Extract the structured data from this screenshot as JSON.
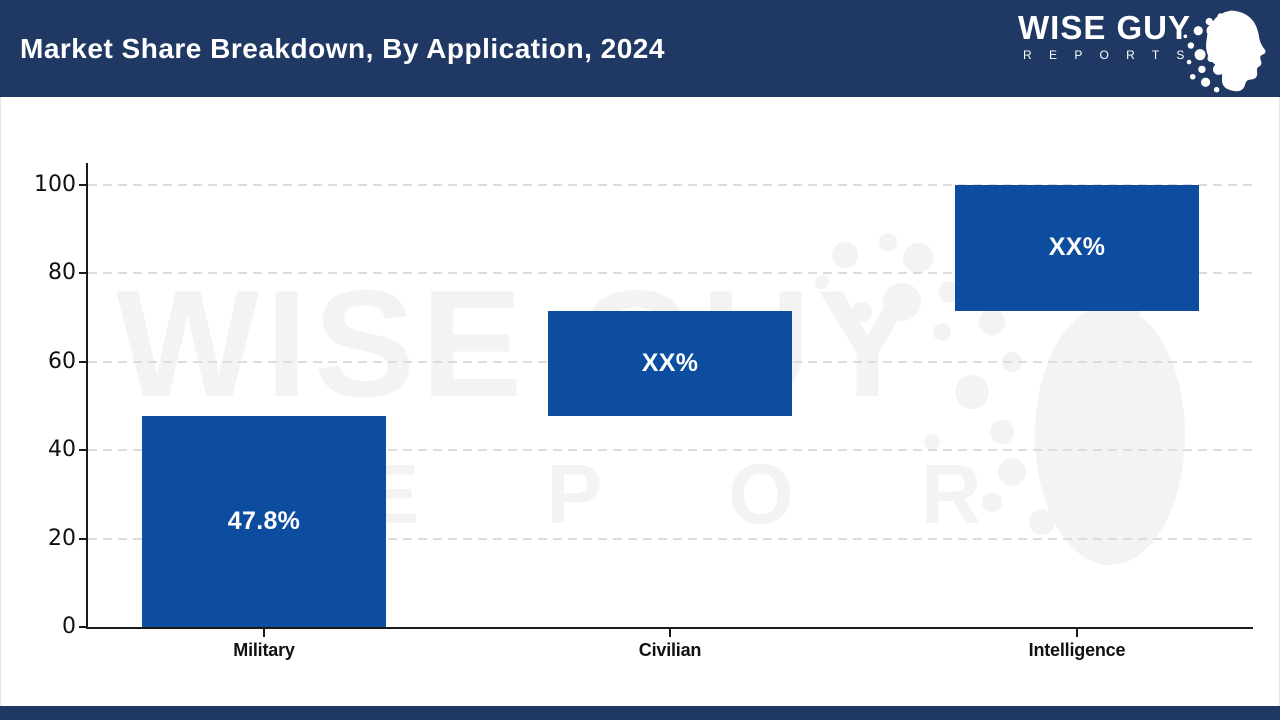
{
  "header": {
    "title": "Market Share Breakdown, By Application, 2024",
    "bg_color": "#1f3864",
    "logo": {
      "line1": "WISE GUY",
      "line2": "R E P O R T S"
    }
  },
  "watermark": {
    "line1": "WISE GUY",
    "line2": "R E P O R T S"
  },
  "footer": {
    "bg_color": "#1f3864"
  },
  "chart_data": {
    "type": "bar",
    "subtype": "waterfall",
    "title": "Market Share Breakdown, By Application, 2024",
    "categories": [
      "Military",
      "Civilian",
      "Intelligence"
    ],
    "segments": [
      {
        "category": "Military",
        "start": 0,
        "end": 47.8,
        "label": "47.8%",
        "estimated_value": 47.8
      },
      {
        "category": "Civilian",
        "start": 47.8,
        "end": 71.5,
        "label": "XX%",
        "estimated_value": 23.7
      },
      {
        "category": "Intelligence",
        "start": 71.5,
        "end": 100,
        "label": "XX%",
        "estimated_value": 28.5
      }
    ],
    "yticks": [
      0,
      20,
      40,
      60,
      80,
      100
    ],
    "ylim": [
      0,
      105
    ],
    "xlabel": "",
    "ylabel": "",
    "grid": "horizontal-dashed",
    "gridline_color": "#dcdcdc",
    "legend": "none",
    "bar_color": "#0c4da0",
    "bar_label_color": "#ffffff",
    "axis_color": "#1a1a1a"
  }
}
